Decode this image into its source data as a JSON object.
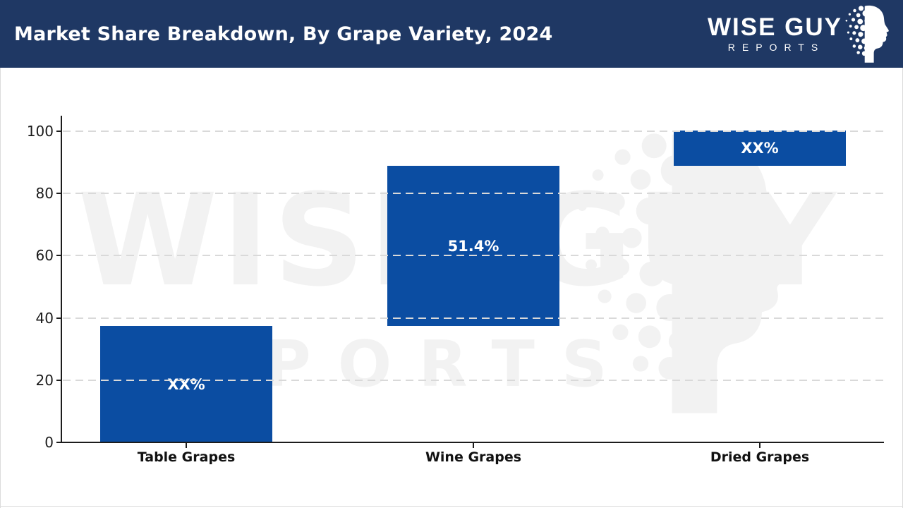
{
  "header": {
    "title": "Market Share Breakdown, By Grape Variety, 2024",
    "logo": {
      "line1": "WISE GUY",
      "line2": "REPORTS"
    }
  },
  "watermark": {
    "line1": "WISE GUY",
    "line2": "REPORTS"
  },
  "chart_data": {
    "type": "bar",
    "subtype": "waterfall-stacked-percentage",
    "title": "Market Share Breakdown, By Grape Variety, 2024",
    "categories": [
      "Table Grapes",
      "Wine Grapes",
      "Dried Grapes"
    ],
    "segments": [
      {
        "category": "Table Grapes",
        "start": 0,
        "end": 37.4,
        "value": 37.4,
        "value_label": "XX%"
      },
      {
        "category": "Wine Grapes",
        "start": 37.4,
        "end": 88.8,
        "value": 51.4,
        "value_label": "51.4%"
      },
      {
        "category": "Dried Grapes",
        "start": 88.8,
        "end": 100.2,
        "value": 11.4,
        "value_label": "XX%"
      }
    ],
    "yticks": [
      0,
      20,
      40,
      60,
      80,
      100
    ],
    "ylim": [
      0,
      105
    ],
    "xlabel": "",
    "ylabel": "",
    "grid": "horizontal-dashed",
    "legend": "none",
    "bar_color": "#0b4da2",
    "bar_label_color": "#ffffff"
  },
  "colors": {
    "header_bg": "#1f3864",
    "axis": "#1c1c1c",
    "gridline": "#d9d9d9",
    "watermark": "#f2f2f2"
  }
}
